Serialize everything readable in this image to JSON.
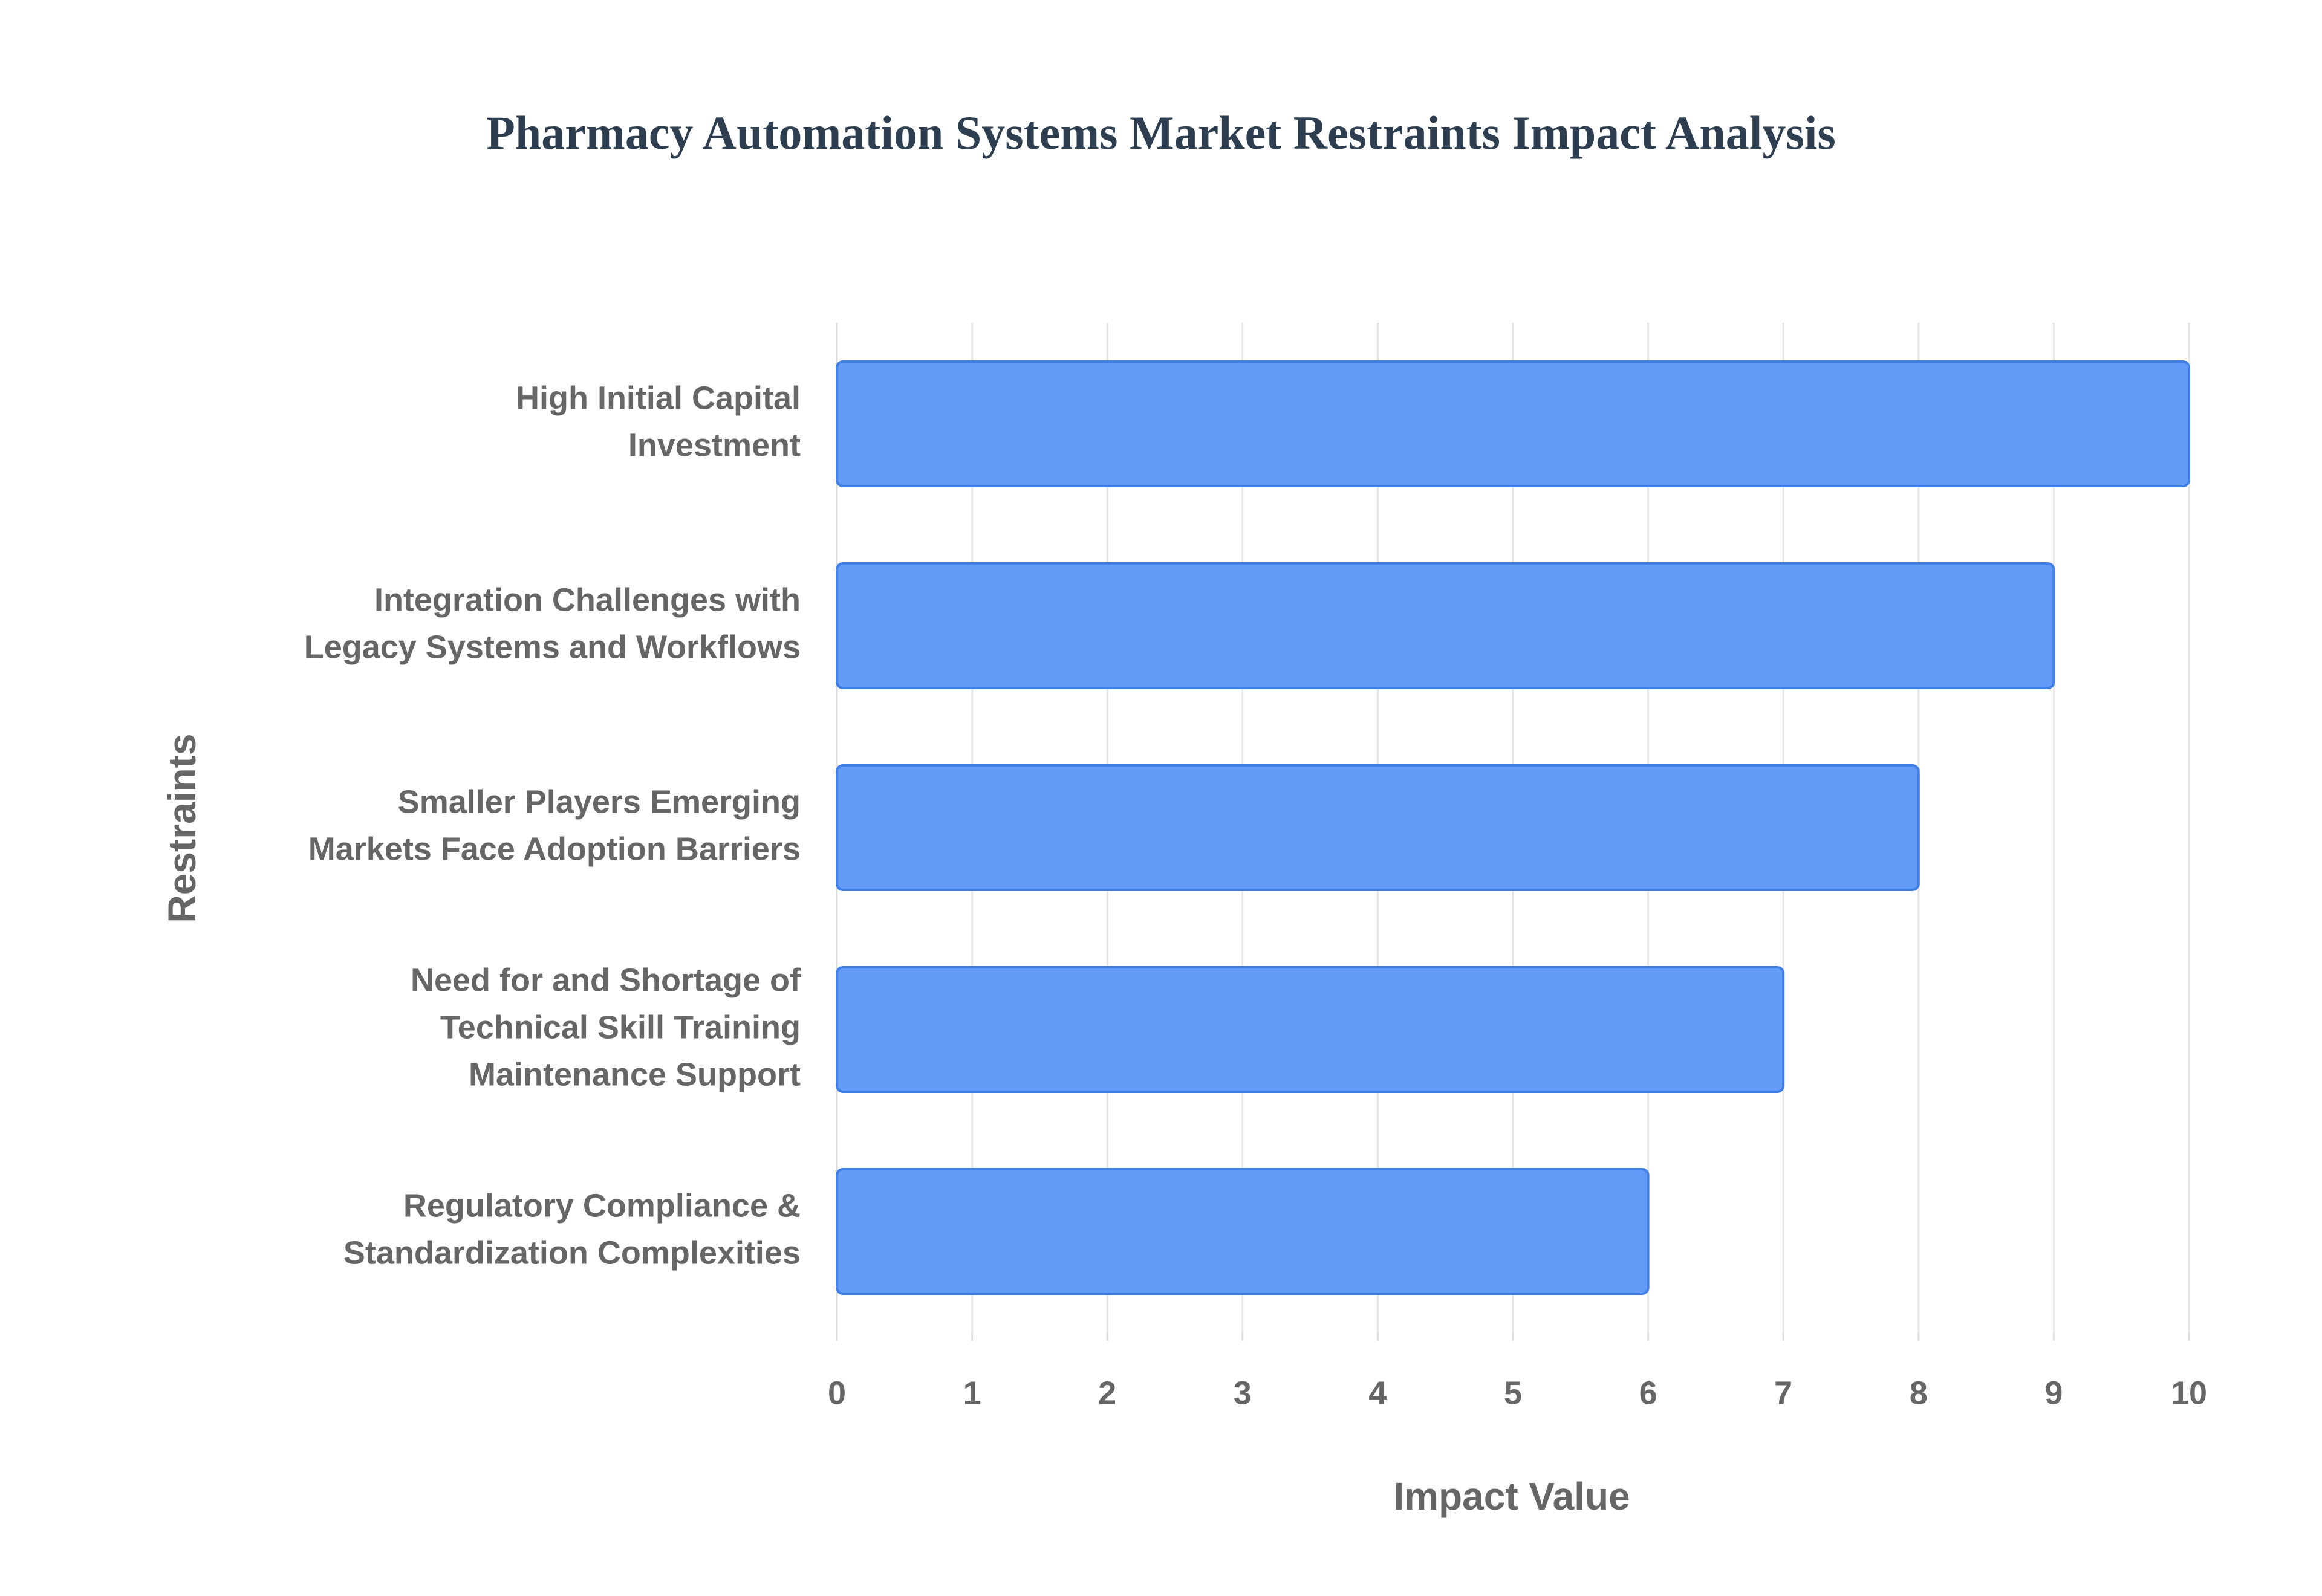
{
  "chart_data": {
    "type": "bar",
    "orientation": "horizontal",
    "title": "Pharmacy Automation Systems Market Restraints Impact Analysis",
    "x_label": "Impact Value",
    "y_label": "Restraints",
    "categories": [
      [
        "High Initial Capital",
        "Investment"
      ],
      [
        "Integration Challenges with",
        "Legacy Systems and Workflows"
      ],
      [
        "Smaller Players Emerging",
        "Markets Face Adoption Barriers"
      ],
      [
        "Need for and Shortage of",
        "Technical Skill Training",
        "Maintenance Support"
      ],
      [
        "Regulatory Compliance &",
        "Standardization Complexities"
      ]
    ],
    "values": [
      10,
      9,
      8,
      7,
      6
    ],
    "color": "#5b96f5",
    "xlim": [
      0,
      10
    ],
    "xticks": [
      0,
      1,
      2,
      3,
      4,
      5,
      6,
      7,
      8,
      9,
      10
    ],
    "grid": true
  }
}
